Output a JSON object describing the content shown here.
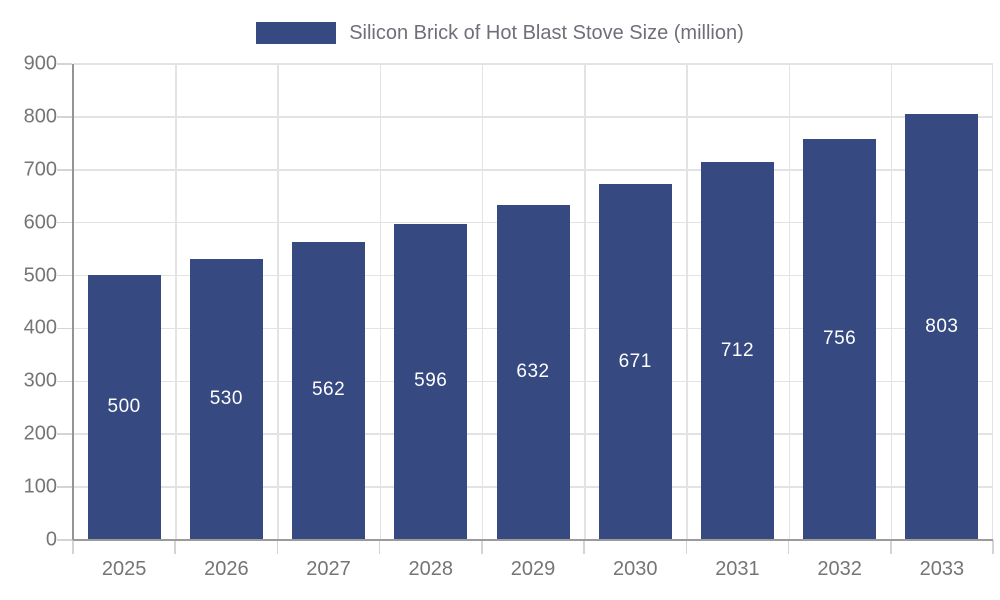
{
  "legend": {
    "label": "Silicon Brick of Hot Blast Stove Size (million)"
  },
  "chart_data": {
    "type": "bar",
    "title": "Silicon Brick of Hot Blast Stove Size (million)",
    "categories": [
      "2025",
      "2026",
      "2027",
      "2028",
      "2029",
      "2030",
      "2031",
      "2032",
      "2033"
    ],
    "series": [
      {
        "name": "Silicon Brick of Hot Blast Stove Size (million)",
        "values": [
          500,
          530,
          562,
          596,
          632,
          671,
          712,
          756,
          803
        ]
      }
    ],
    "xlabel": "",
    "ylabel": "",
    "ylim": [
      0,
      900
    ],
    "ytick_step": 100,
    "ytick_labels": [
      "0",
      "100",
      "200",
      "300",
      "400",
      "500",
      "600",
      "700",
      "800",
      "900"
    ],
    "grid": true,
    "bar_value_labels": "inside-middle",
    "legend_position": "top-center",
    "colors": {
      "bar": "#364A81",
      "bar_label": "#FFFFFF",
      "axis_text": "#757575",
      "legend_text": "#6E7079",
      "grid_line": "#E3E3E3",
      "axis_line": "#9B9B9B",
      "tick_line": "#D4D4D4"
    }
  }
}
